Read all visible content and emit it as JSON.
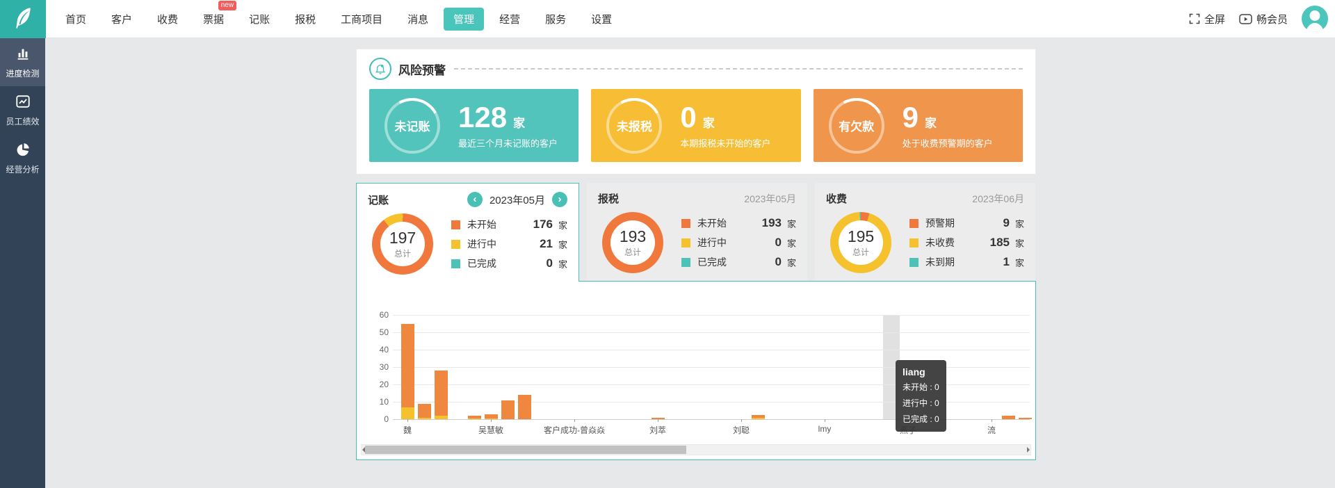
{
  "header": {
    "menu": [
      {
        "label": "首页"
      },
      {
        "label": "客户"
      },
      {
        "label": "收费"
      },
      {
        "label": "票据",
        "badge": "new"
      },
      {
        "label": "记账"
      },
      {
        "label": "报税"
      },
      {
        "label": "工商项目"
      },
      {
        "label": "消息"
      },
      {
        "label": "管理",
        "active": true
      },
      {
        "label": "经营"
      },
      {
        "label": "服务"
      },
      {
        "label": "设置"
      }
    ],
    "fullscreen_label": "全屏",
    "member_label": "畅会员"
  },
  "sidebar": {
    "items": [
      {
        "label": "进度检测",
        "icon": "bar-chart-icon",
        "active": true
      },
      {
        "label": "员工绩效",
        "icon": "line-chart-icon"
      },
      {
        "label": "经营分析",
        "icon": "pie-chart-icon"
      }
    ]
  },
  "risk": {
    "title": "风险预警",
    "cards": [
      {
        "tag": "未记账",
        "value": "128",
        "unit": "家",
        "desc": "最近三个月未记账的客户",
        "color": "#53c4bb"
      },
      {
        "tag": "未报税",
        "value": "0",
        "unit": "家",
        "desc": "本期报税未开始的客户",
        "color": "#f6bd35"
      },
      {
        "tag": "有欠款",
        "value": "9",
        "unit": "家",
        "desc": "处于收费预警期的客户",
        "color": "#f0954c"
      }
    ]
  },
  "panels": [
    {
      "title": "记账",
      "date": "2023年05月",
      "date_nav": true,
      "active": true,
      "donut": {
        "total": "197",
        "total_label": "总计",
        "from_deg": -38,
        "segments": [
          {
            "color": "#f5c12d",
            "value": 21
          },
          {
            "color": "#f0783c",
            "value": 176
          }
        ]
      },
      "legend": [
        {
          "color": "#f0783c",
          "label": "未开始",
          "value": "176",
          "unit": "家"
        },
        {
          "color": "#f5c12d",
          "label": "进行中",
          "value": "21",
          "unit": "家"
        },
        {
          "color": "#4fc2b8",
          "label": "已完成",
          "value": "0",
          "unit": "家"
        }
      ]
    },
    {
      "title": "报税",
      "date": "2023年05月",
      "donut": {
        "total": "193",
        "total_label": "总计",
        "from_deg": 0,
        "segments": [
          {
            "color": "#f0783c",
            "value": 193
          }
        ]
      },
      "legend": [
        {
          "color": "#f0783c",
          "label": "未开始",
          "value": "193",
          "unit": "家"
        },
        {
          "color": "#f5c12d",
          "label": "进行中",
          "value": "0",
          "unit": "家"
        },
        {
          "color": "#4fc2b8",
          "label": "已完成",
          "value": "0",
          "unit": "家"
        }
      ]
    },
    {
      "title": "收费",
      "date": "2023年06月",
      "donut": {
        "total": "195",
        "total_label": "总计",
        "from_deg": -2,
        "segments": [
          {
            "color": "#4fc2b8",
            "value": 1
          },
          {
            "color": "#f0783c",
            "value": 9
          },
          {
            "color": "#f5c12d",
            "value": 185
          }
        ]
      },
      "legend": [
        {
          "color": "#f0783c",
          "label": "预警期",
          "value": "9",
          "unit": "家"
        },
        {
          "color": "#f5c12d",
          "label": "未收费",
          "value": "185",
          "unit": "家"
        },
        {
          "color": "#4fc2b8",
          "label": "未到期",
          "value": "1",
          "unit": "家"
        }
      ]
    }
  ],
  "chart_data": {
    "type": "bar",
    "stacked": true,
    "ylim": [
      0,
      60
    ],
    "yticks": [
      0,
      10,
      20,
      30,
      40,
      50,
      60
    ],
    "grid": true,
    "slot_count": 38,
    "series_colors": {
      "未开始": "#f0873f",
      "进行中": "#f5c12d",
      "已完成": "#4fc2b8"
    },
    "bars": [
      {
        "slot": 0,
        "未开始": 48,
        "进行中": 7
      },
      {
        "slot": 1,
        "未开始": 8,
        "进行中": 1
      },
      {
        "slot": 2,
        "未开始": 26,
        "进行中": 2
      },
      {
        "slot": 4,
        "未开始": 1.5,
        "进行中": 0.5
      },
      {
        "slot": 5,
        "未开始": 2.5,
        "进行中": 0.5
      },
      {
        "slot": 6,
        "未开始": 11
      },
      {
        "slot": 7,
        "未开始": 14
      },
      {
        "slot": 15,
        "未开始": 1
      },
      {
        "slot": 21,
        "未开始": 1.5,
        "进行中": 1
      },
      {
        "slot": 36,
        "未开始": 2
      },
      {
        "slot": 37,
        "未开始": 1
      }
    ],
    "x_labels": [
      {
        "slot": 0,
        "text": "魏"
      },
      {
        "slot": 5,
        "text": "吴慧敏"
      },
      {
        "slot": 10,
        "text": "客户成功-曾焱焱"
      },
      {
        "slot": 15,
        "text": "刘萃"
      },
      {
        "slot": 20,
        "text": "刘聪"
      },
      {
        "slot": 25,
        "text": "lmy"
      },
      {
        "slot": 30,
        "text": "燕子"
      },
      {
        "slot": 35,
        "text": "流"
      }
    ],
    "hover_slot": 29,
    "tooltip": {
      "title": "liang",
      "rows": [
        {
          "label": "未开始",
          "value": "0"
        },
        {
          "label": "进行中",
          "value": "0"
        },
        {
          "label": "已完成",
          "value": "0"
        }
      ]
    }
  },
  "icons": {
    "prev": "‹",
    "next": "›"
  }
}
